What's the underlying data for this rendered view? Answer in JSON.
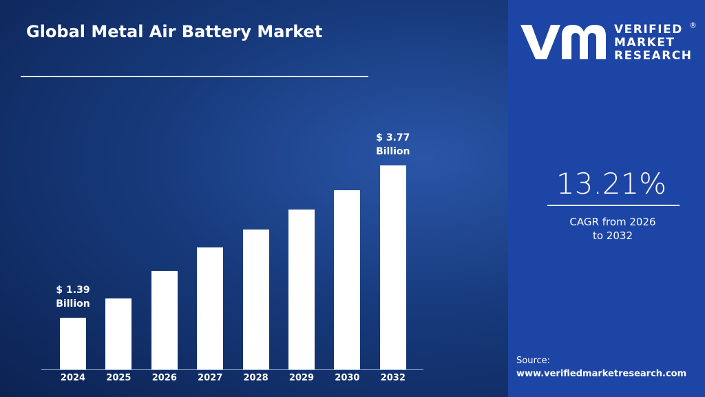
{
  "chart_data": {
    "type": "bar",
    "title": "Global Metal Air Battery Market",
    "categories": [
      "2024",
      "2025",
      "2026",
      "2027",
      "2028",
      "2029",
      "2030",
      "2032"
    ],
    "values": [
      1.39,
      1.69,
      2.12,
      2.48,
      2.76,
      3.08,
      3.38,
      3.77
    ],
    "value_labels": [
      "$ 1.39 Billion",
      null,
      null,
      null,
      null,
      null,
      null,
      "$ 3.77 Billion"
    ],
    "color": "#ffffff"
  },
  "brand": [
    "VERIFIED",
    "MARKET",
    "RESEARCH"
  ],
  "cagr": {
    "value": "13.21%",
    "label": "CAGR from 2026 to 2032"
  },
  "source": {
    "label": "Source:",
    "url": "www.verifiedmarketresearch.com"
  }
}
